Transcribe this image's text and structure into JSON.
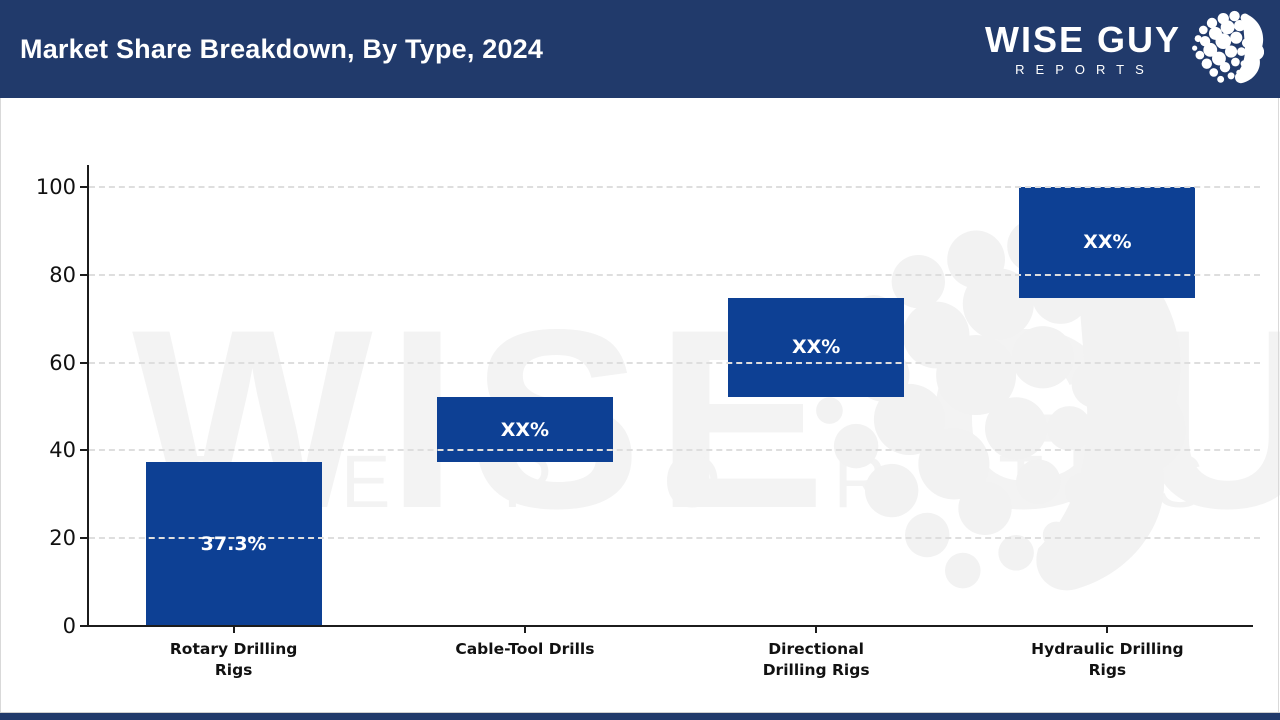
{
  "header": {
    "title": "Market Share Breakdown, By Type, 2024",
    "logo_line1": "WISE GUY",
    "logo_line2": "REPORTS",
    "bg_color": "#213a6b"
  },
  "watermark": {
    "text_large": "WISE GUY",
    "text_small": "R E P O R T S"
  },
  "chart_data": {
    "type": "bar",
    "variant": "waterfall",
    "title": "Market Share Breakdown, By Type, 2024",
    "categories": [
      "Rotary Drilling Rigs",
      "Cable-Tool Drills",
      "Directional Drilling Rigs",
      "Hydraulic Drilling Rigs"
    ],
    "category_label_lines": [
      [
        "Rotary Drilling",
        "Rigs"
      ],
      [
        "Cable-Tool Drills"
      ],
      [
        "Directional",
        "Drilling Rigs"
      ],
      [
        "Hydraulic Drilling",
        "Rigs"
      ]
    ],
    "series": [
      {
        "name": "Market Share (%)",
        "segments": [
          {
            "category": "Rotary Drilling Rigs",
            "start": 0,
            "end": 37.3,
            "label": "37.3%"
          },
          {
            "category": "Cable-Tool Drills",
            "start": 37.3,
            "end": 52.2,
            "label": "XX%"
          },
          {
            "category": "Directional Drilling Rigs",
            "start": 52.2,
            "end": 74.8,
            "label": "XX%"
          },
          {
            "category": "Hydraulic Drilling Rigs",
            "start": 74.8,
            "end": 100,
            "label": "XX%"
          }
        ]
      }
    ],
    "xlabel": "",
    "ylabel": "",
    "ylim": [
      0,
      100
    ],
    "yticks": [
      0,
      20,
      40,
      60,
      80,
      100
    ],
    "grid": "horizontal dashed",
    "legend": "none",
    "bar_color": "#0d4094",
    "bar_label_color": "#ffffff",
    "axis_color": "#1c1c1c",
    "gridline_color": "#dedede"
  }
}
